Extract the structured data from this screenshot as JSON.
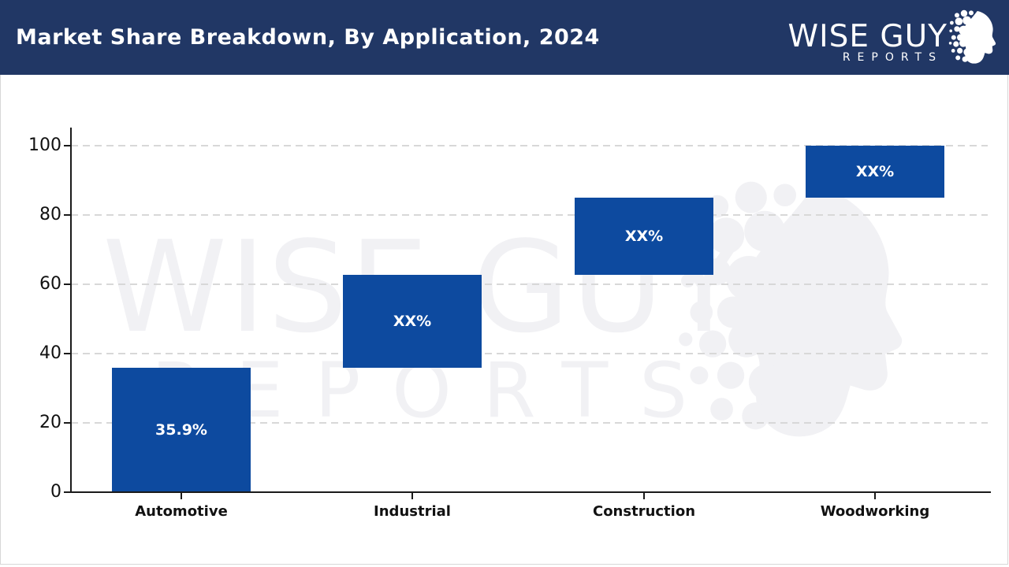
{
  "header": {
    "title": "Market Share Breakdown, By Application, 2024"
  },
  "logo": {
    "line1": "WISE GUY",
    "line2": "REPORTS"
  },
  "watermark": {
    "line1": "WISE GUY",
    "line2": "REPORTS"
  },
  "colors": {
    "header_bg": "#213765",
    "bar": "#0d4a9f",
    "axis": "#1a1a1a",
    "grid": "#d8d8d8",
    "bar_label": "#ffffff",
    "watermark": "#f1f1f4"
  },
  "chart_data": {
    "type": "bar",
    "variant": "floating-range-waterfall",
    "title": "Market Share Breakdown, By Application, 2024",
    "categories": [
      "Automotive",
      "Industrial",
      "Construction",
      "Woodworking"
    ],
    "bars": [
      {
        "category": "Automotive",
        "start": 0,
        "end": 35.9,
        "label": "35.9%"
      },
      {
        "category": "Industrial",
        "start": 35.9,
        "end": 62.8,
        "label": "XX%"
      },
      {
        "category": "Construction",
        "start": 62.8,
        "end": 85.0,
        "label": "XX%"
      },
      {
        "category": "Woodworking",
        "start": 85.0,
        "end": 100.0,
        "label": "XX%"
      }
    ],
    "ylim": [
      0,
      100
    ],
    "yticks": [
      0,
      20,
      40,
      60,
      80,
      100
    ],
    "xlabel": "",
    "ylabel": "",
    "grid": "dashed-horizontal",
    "legend": "none"
  }
}
